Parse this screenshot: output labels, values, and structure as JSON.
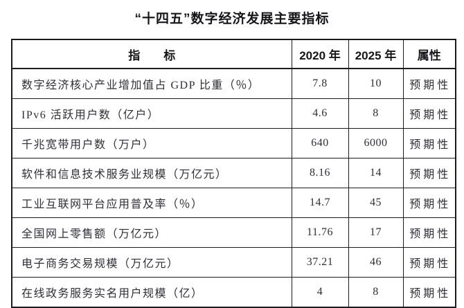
{
  "title": "“十四五”数字经济发展主要指标",
  "table": {
    "headers": {
      "indicator": "指　　标",
      "year2020": "2020 年",
      "year2025": "2025 年",
      "attribute": "属性"
    },
    "rows": [
      {
        "indicator": "数字经济核心产业增加值占 GDP 比重（％）",
        "y2020": "7.8",
        "y2025": "10",
        "attr": "预期性"
      },
      {
        "indicator": "IPv6 活跃用户数（亿户）",
        "y2020": "4.6",
        "y2025": "8",
        "attr": "预期性"
      },
      {
        "indicator": "千兆宽带用户数（万户）",
        "y2020": "640",
        "y2025": "6000",
        "attr": "预期性"
      },
      {
        "indicator": "软件和信息技术服务业规模（万亿元）",
        "y2020": "8.16",
        "y2025": "14",
        "attr": "预期性"
      },
      {
        "indicator": "工业互联网平台应用普及率（％）",
        "y2020": "14.7",
        "y2025": "45",
        "attr": "预期性"
      },
      {
        "indicator": "全国网上零售额（万亿元）",
        "y2020": "11.76",
        "y2025": "17",
        "attr": "预期性"
      },
      {
        "indicator": "电子商务交易规模（万亿元）",
        "y2020": "37.21",
        "y2025": "46",
        "attr": "预期性"
      },
      {
        "indicator": "在线政务服务实名用户规模（亿）",
        "y2020": "4",
        "y2025": "8",
        "attr": "预期性"
      }
    ]
  }
}
